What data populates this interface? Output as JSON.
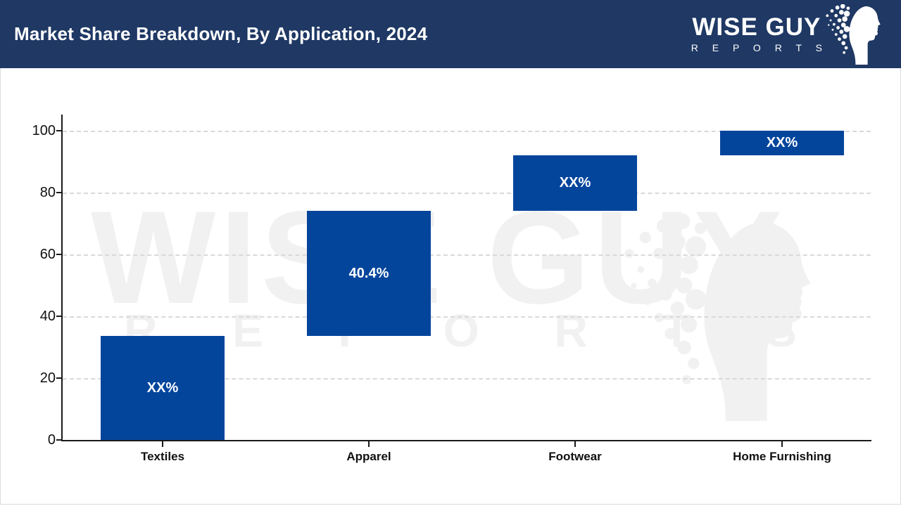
{
  "header": {
    "title": "Market Share Breakdown, By Application, 2024",
    "logo": {
      "line1": "WISE GUY",
      "line2": "R E P O R T S"
    }
  },
  "watermark": {
    "line1": "WISE GUY",
    "line2": "R E P O R T S"
  },
  "colors": {
    "header_bg": "#1f3864",
    "header_text": "#ffffff",
    "bar": "#04459c",
    "bar_label": "#ffffff",
    "axis": "#1a1a1a",
    "gridline": "#d9d9d9",
    "watermark": "#f1f1f1"
  },
  "chart_data": {
    "type": "bar",
    "subtype": "waterfall",
    "title": "Market Share Breakdown, By Application, 2024",
    "xlabel": "",
    "ylabel": "",
    "categories": [
      "Textiles",
      "Apparel",
      "Footwear",
      "Home Furnishing"
    ],
    "yticks": [
      0,
      20,
      40,
      60,
      80,
      100
    ],
    "ylim": [
      0,
      105
    ],
    "grid": "horizontal-dashed",
    "legend": false,
    "series": [
      {
        "name": "Market Share",
        "segments": [
          {
            "category": "Textiles",
            "start": 0,
            "end": 33.6,
            "value": 33.6,
            "label": "XX%"
          },
          {
            "category": "Apparel",
            "start": 33.6,
            "end": 74.0,
            "value": 40.4,
            "label": "40.4%"
          },
          {
            "category": "Footwear",
            "start": 74.0,
            "end": 92.0,
            "value": 18.0,
            "label": "XX%"
          },
          {
            "category": "Home Furnishing",
            "start": 92.0,
            "end": 100.0,
            "value": 8.0,
            "label": "XX%"
          }
        ]
      }
    ]
  }
}
